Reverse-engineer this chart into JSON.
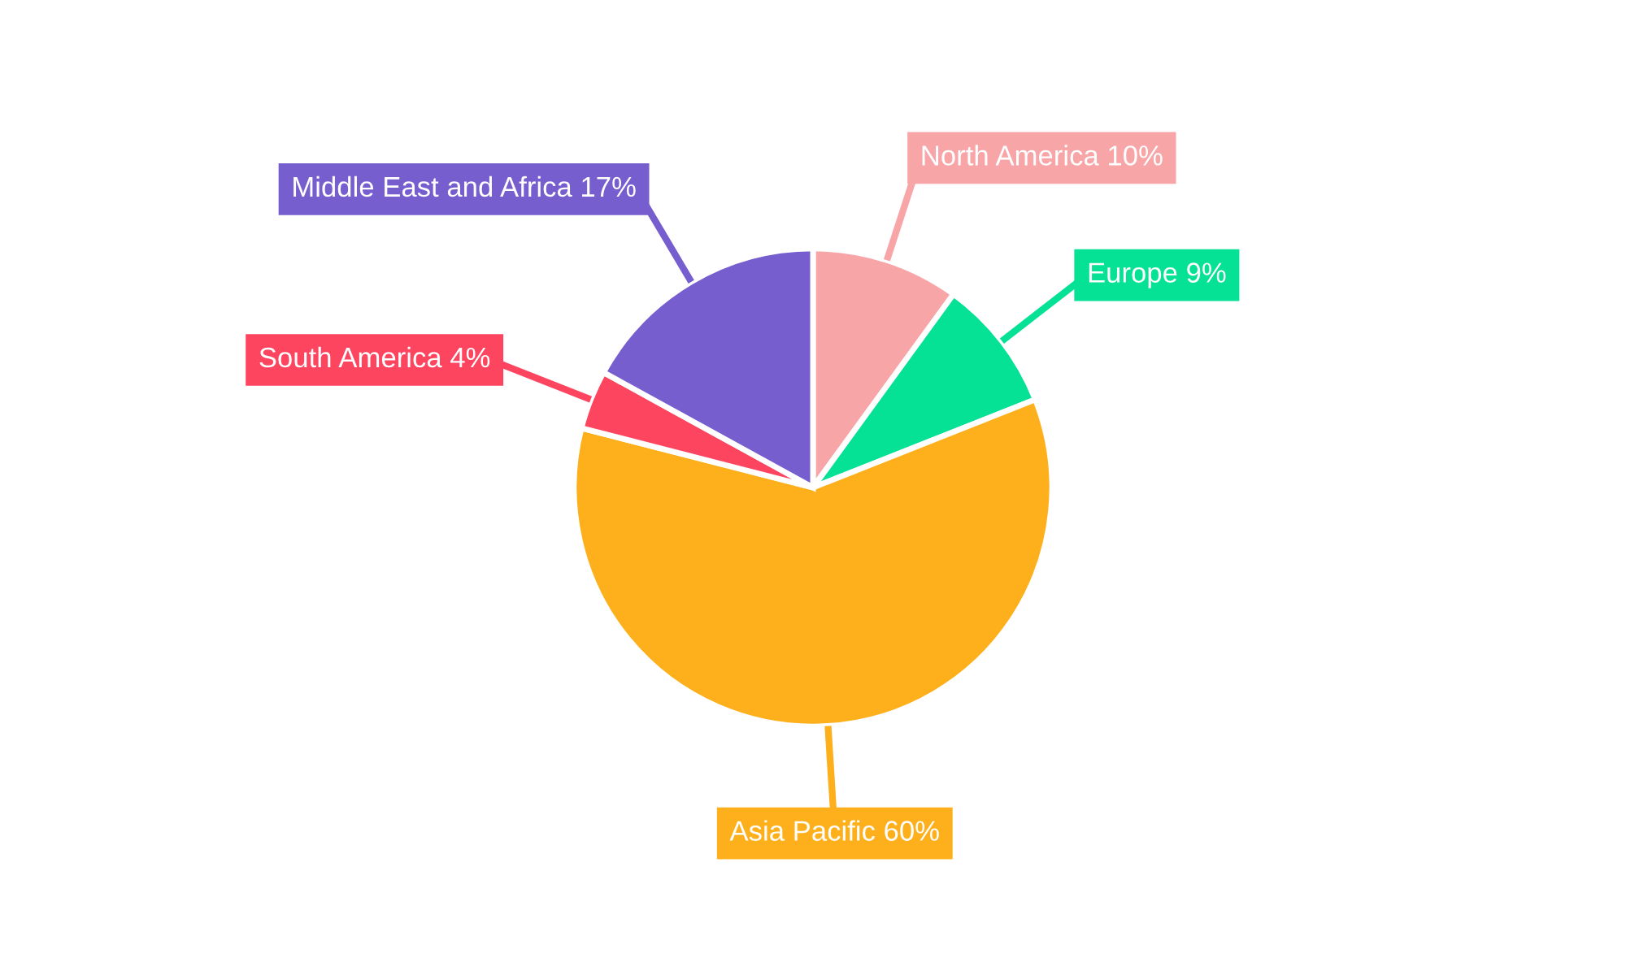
{
  "chart_data": {
    "type": "pie",
    "categories": [
      "North America",
      "Europe",
      "Asia Pacific",
      "South America",
      "Middle East and Africa"
    ],
    "values": [
      10,
      9,
      60,
      4,
      17
    ],
    "value_labels": [
      "10%",
      "9%",
      "60%",
      "4%",
      "17%"
    ],
    "colors": [
      "#f8a5a8",
      "#05e195",
      "#fdb01b",
      "#fe4560",
      "#775ecf"
    ],
    "legend": false
  }
}
